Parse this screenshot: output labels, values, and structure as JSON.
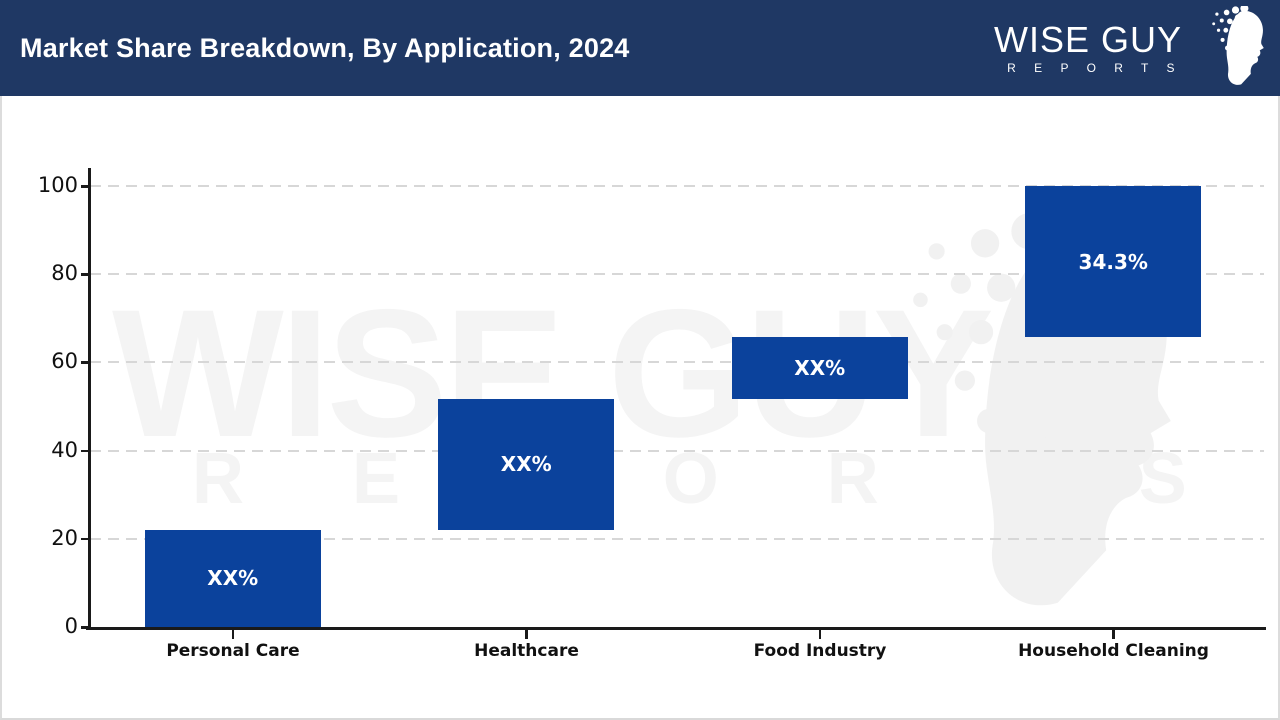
{
  "header": {
    "title": "Market Share Breakdown, By Application, 2024",
    "bg_color": "#1f3864",
    "logo": {
      "line1": "WISE GUY",
      "line2": "R E P O R T S"
    }
  },
  "watermark": {
    "line1": "WISE GUY",
    "line2": "R E P O R T S"
  },
  "chart_data": {
    "type": "bar",
    "subtype": "waterfall-stacked-breakdown",
    "title": "Market Share Breakdown, By Application, 2024",
    "categories": [
      "Personal Care",
      "Healthcare",
      "Food Industry",
      "Household Cleaning"
    ],
    "segments": [
      {
        "category": "Personal Care",
        "start": 0,
        "end": 22,
        "label": "XX%"
      },
      {
        "category": "Healthcare",
        "start": 22,
        "end": 51.7,
        "label": "XX%"
      },
      {
        "category": "Food Industry",
        "start": 51.7,
        "end": 65.7,
        "label": "XX%"
      },
      {
        "category": "Household Cleaning",
        "start": 65.7,
        "end": 100,
        "label": "34.3%"
      }
    ],
    "yticks": [
      0,
      20,
      40,
      60,
      80,
      100
    ],
    "ylim": [
      0,
      104
    ],
    "xlabel": "",
    "ylabel": "",
    "bar_color": "#0b429c",
    "grid": "horizontal-dashed",
    "gridline_color": "#d7d7d7",
    "legend": "none"
  }
}
